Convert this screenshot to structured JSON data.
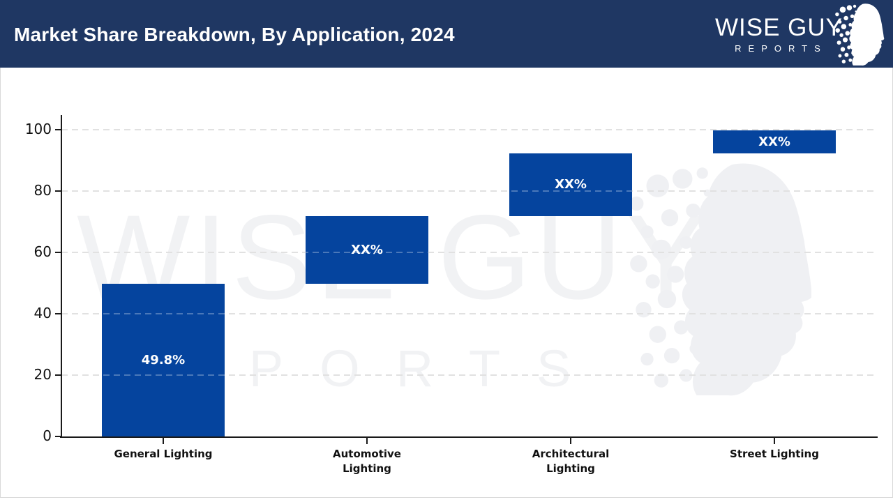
{
  "header": {
    "title": "Market Share Breakdown, By Application, 2024",
    "logo": {
      "line1": "WISE GUY",
      "line2": "REPORTS"
    }
  },
  "watermark": {
    "line1": "WISE GUY",
    "line2": "REPORTS"
  },
  "chart_data": {
    "type": "bar",
    "subtype": "waterfall",
    "title": "Market Share Breakdown, By Application, 2024",
    "categories": [
      "General Lighting",
      "Automotive Lighting",
      "Architectural Lighting",
      "Street Lighting"
    ],
    "category_label_lines": [
      [
        "General Lighting"
      ],
      [
        "Automotive",
        "Lighting"
      ],
      [
        "Architectural",
        "Lighting"
      ],
      [
        "Street Lighting"
      ]
    ],
    "segments": [
      {
        "category": "General Lighting",
        "start": 0,
        "end": 49.8,
        "label": "49.8%"
      },
      {
        "category": "Automotive Lighting",
        "start": 49.8,
        "end": 71.9,
        "label": "XX%"
      },
      {
        "category": "Architectural Lighting",
        "start": 71.9,
        "end": 92.3,
        "label": "XX%"
      },
      {
        "category": "Street Lighting",
        "start": 92.3,
        "end": 99.8,
        "label": "XX%"
      }
    ],
    "ylim": [
      0,
      100
    ],
    "yticks": [
      0,
      20,
      40,
      60,
      80,
      100
    ],
    "xlabel": "",
    "ylabel": "",
    "grid": "horizontal-dashed",
    "legend": "none",
    "bar_color": "#05449e",
    "bar_label_color": "#ffffff",
    "axis_color": "#1a1a1a",
    "grid_color": "#d6d6d6",
    "header_color": "#1f3763",
    "watermark_color": "#f1f2f4"
  }
}
